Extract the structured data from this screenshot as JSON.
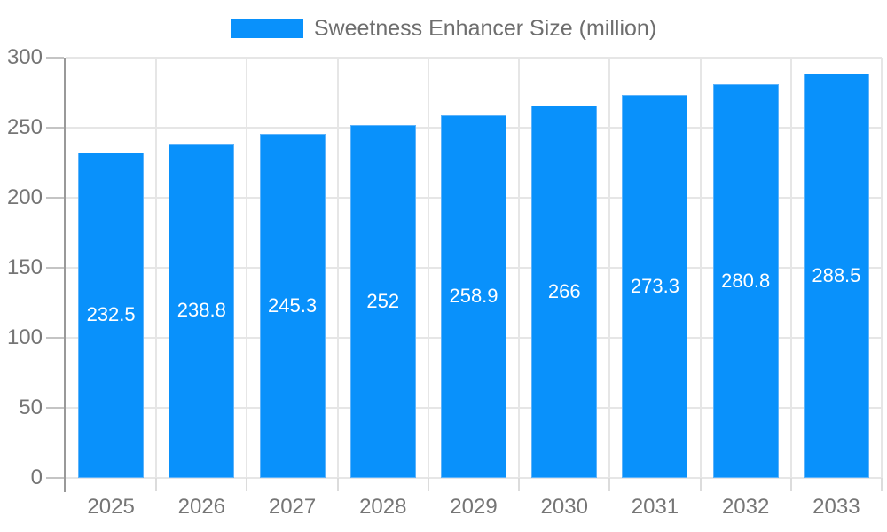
{
  "chart_data": {
    "type": "bar",
    "title": "Sweetness Enhancer Size (million)",
    "categories": [
      "2025",
      "2026",
      "2027",
      "2028",
      "2029",
      "2030",
      "2031",
      "2032",
      "2033"
    ],
    "values": [
      232.5,
      238.8,
      245.3,
      252,
      258.9,
      266,
      273.3,
      280.8,
      288.5
    ],
    "value_labels": [
      "232.5",
      "238.8",
      "245.3",
      "252",
      "258.9",
      "266",
      "273.3",
      "280.8",
      "288.5"
    ],
    "xlabel": "",
    "ylabel": "",
    "ylim": [
      0,
      300
    ],
    "yticks": [
      0,
      50,
      100,
      150,
      200,
      250,
      300
    ],
    "grid": true,
    "legend_position": "top",
    "colors": {
      "bar_fill": "#0991FB",
      "bar_border": "#5EB3FA",
      "value_label_text": "#FFFFFF",
      "axis_label_text": "#757575",
      "legend_text": "#6E6E6E",
      "axis_line": "#999999",
      "gridline": "#E6E6E6",
      "y_tick": "#C4C4C4",
      "x_tick": "#DCDCDC",
      "background": "#FFFFFF"
    }
  }
}
